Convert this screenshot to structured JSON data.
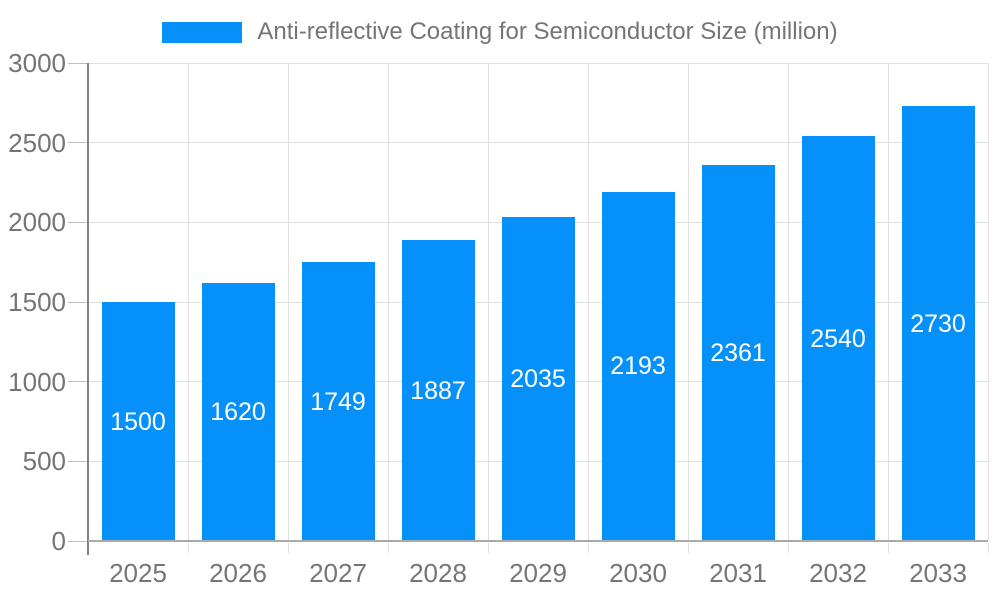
{
  "chart_data": {
    "type": "bar",
    "categories": [
      "2025",
      "2026",
      "2027",
      "2028",
      "2029",
      "2030",
      "2031",
      "2032",
      "2033"
    ],
    "series": [
      {
        "name": "Anti-reflective Coating for Semiconductor Size (million)",
        "values": [
          1500,
          1620,
          1749,
          1887,
          2035,
          2193,
          2361,
          2540,
          2730
        ]
      }
    ],
    "xlabel": "",
    "ylabel": "",
    "ylim": [
      0,
      3000
    ],
    "yticks": [
      0,
      500,
      1000,
      1500,
      2000,
      2500,
      3000
    ],
    "grid": true,
    "bar_value_labels": true,
    "legend_position": "top",
    "colors": {
      "bar": "#0691FA",
      "bar_label": "#FFFFFF",
      "axis_text": "#757575",
      "y_axis_line": "#848484",
      "x_axis_line": "#AAAAAA",
      "grid_line": "#E0E0E0",
      "tick": "#BDBDBD",
      "background": "#FFFFFF"
    }
  }
}
